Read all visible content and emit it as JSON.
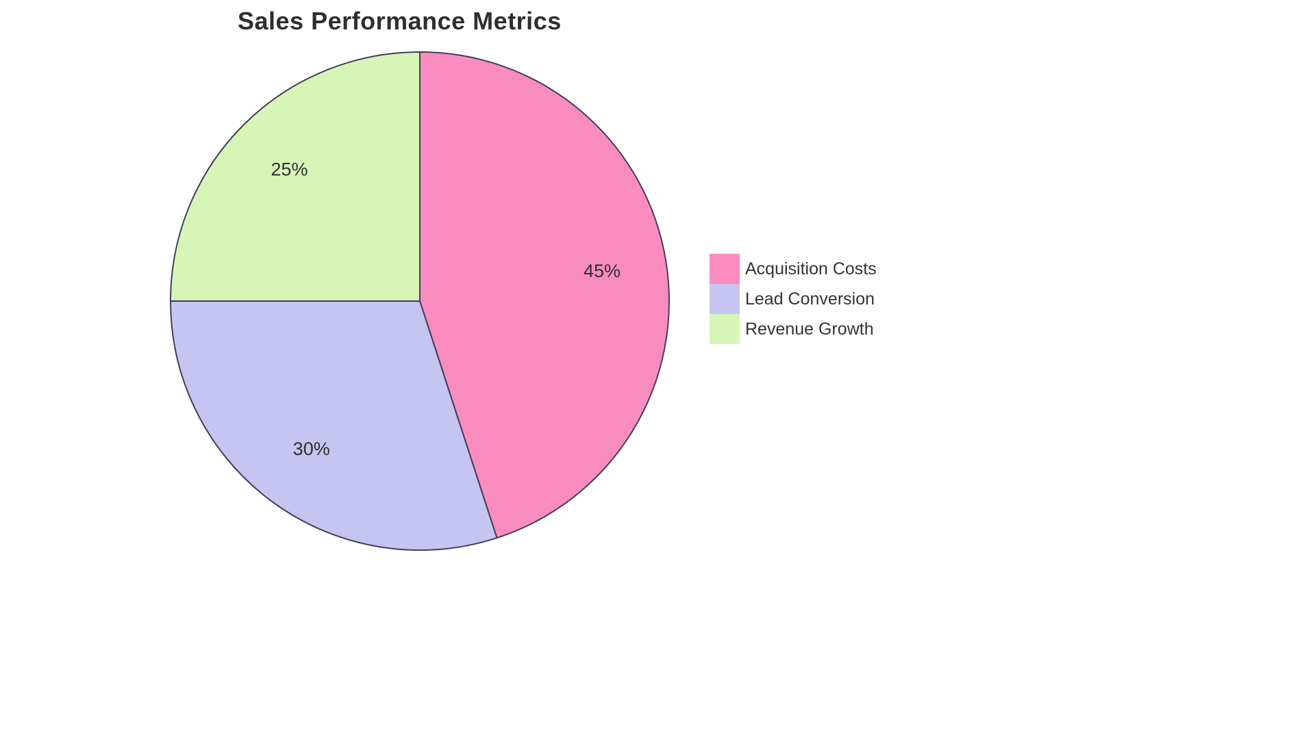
{
  "chart_data": {
    "type": "pie",
    "title": "Sales Performance Metrics",
    "labels": [
      "Acquisition Costs",
      "Lead Conversion",
      "Revenue Growth"
    ],
    "values": [
      45,
      30,
      25
    ],
    "percent_labels": [
      "45%",
      "30%",
      "25%"
    ],
    "colors": [
      "#F98CBE",
      "#C6C4F0",
      "#D8F5B8"
    ],
    "stroke_color": "#3F3F5A",
    "background_color": "#FFFFFF",
    "start_angle_deg": 0,
    "direction": "clockwise",
    "legend_position": "right",
    "legend_entries": [
      "Acquisition Costs",
      "Lead Conversion",
      "Revenue Growth"
    ]
  }
}
